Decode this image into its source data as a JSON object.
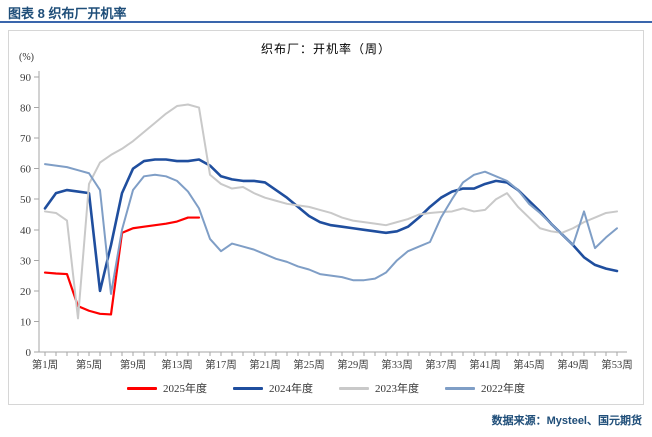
{
  "header": {
    "title": "图表 8 织布厂开机率"
  },
  "footer": {
    "source": "数据来源：Mysteel、国元期货"
  },
  "theme": {
    "heading_color": "#1f4e79",
    "divider_color": "#3a66ac",
    "axis_color": "#a6a6a6",
    "tick_text_color": "#404040"
  },
  "chart_data": {
    "type": "line",
    "title": "织布厂：开机率（周）",
    "unit_label": "(%)",
    "xlabel": "",
    "ylabel": "开机率(%)",
    "weeks": 53,
    "ylim": [
      0,
      90
    ],
    "grid": false,
    "legend_position": "bottom",
    "y_ticks": [
      0,
      10,
      20,
      30,
      40,
      50,
      60,
      70,
      80,
      90
    ],
    "x_ticks": [
      {
        "week": 1,
        "label": "第1周"
      },
      {
        "week": 5,
        "label": "第5周"
      },
      {
        "week": 9,
        "label": "第9周"
      },
      {
        "week": 13,
        "label": "第13周"
      },
      {
        "week": 17,
        "label": "第17周"
      },
      {
        "week": 21,
        "label": "第21周"
      },
      {
        "week": 25,
        "label": "第25周"
      },
      {
        "week": 29,
        "label": "第29周"
      },
      {
        "week": 33,
        "label": "第33周"
      },
      {
        "week": 37,
        "label": "第37周"
      },
      {
        "week": 41,
        "label": "第41周"
      },
      {
        "week": 45,
        "label": "第45周"
      },
      {
        "week": 49,
        "label": "第49周"
      },
      {
        "week": 53,
        "label": "第53周"
      }
    ],
    "series": [
      {
        "name": "2025年度",
        "color": "#ff0000",
        "stroke_width": 2.2,
        "start_week": 1,
        "values": [
          26,
          25.7,
          25.5,
          15,
          13.5,
          12.5,
          12.3,
          39,
          40.5,
          41,
          41.5,
          42,
          42.7,
          44,
          44
        ]
      },
      {
        "name": "2024年度",
        "color": "#1f4e9e",
        "stroke_width": 2.6,
        "start_week": 1,
        "values": [
          47,
          52,
          53,
          52.5,
          52,
          20,
          35,
          52,
          60,
          62.5,
          63,
          63,
          62.5,
          62.5,
          63,
          61,
          57.5,
          56.5,
          56,
          56,
          55.5,
          53,
          50.5,
          47.5,
          44.5,
          42.5,
          41.5,
          41,
          40.5,
          40,
          39.5,
          39,
          39.5,
          41,
          44,
          47.5,
          50.5,
          52.5,
          53.5,
          53.5,
          55,
          56,
          55.5,
          53,
          49.5,
          46,
          42,
          38.5,
          35,
          31,
          28.5,
          27.3,
          26.5
        ]
      },
      {
        "name": "2023年度",
        "color": "#c9c9c9",
        "stroke_width": 2,
        "start_week": 1,
        "values": [
          46,
          45.5,
          43,
          11,
          55,
          62,
          64.5,
          66.5,
          69,
          72,
          75,
          78,
          80.5,
          81,
          80,
          58,
          55,
          53.5,
          54,
          52,
          50.5,
          49.5,
          48.5,
          48,
          47.5,
          46.5,
          45.5,
          44,
          43,
          42.5,
          42,
          41.5,
          42.5,
          43.5,
          45,
          45.5,
          45.8,
          46,
          47,
          46,
          46.5,
          50,
          52,
          47.5,
          44,
          40.5,
          39.5,
          39,
          40.5,
          42.5,
          44,
          45.5,
          46
        ]
      },
      {
        "name": "2022年度",
        "color": "#7f9ec6",
        "stroke_width": 2,
        "start_week": 1,
        "values": [
          61.5,
          61,
          60.5,
          59.5,
          58.5,
          53,
          19,
          40,
          53,
          57.5,
          58,
          57.5,
          56,
          52.5,
          47,
          37,
          33,
          35.5,
          34.5,
          33.5,
          32,
          30.5,
          29.5,
          28,
          27,
          25.5,
          25,
          24.5,
          23.5,
          23.5,
          24,
          26,
          30,
          33,
          34.5,
          36,
          44,
          50,
          55.5,
          58,
          59,
          57.5,
          56,
          53,
          48.5,
          45.5,
          42,
          38.5,
          35,
          46,
          34,
          37.5,
          40.5
        ]
      }
    ]
  }
}
